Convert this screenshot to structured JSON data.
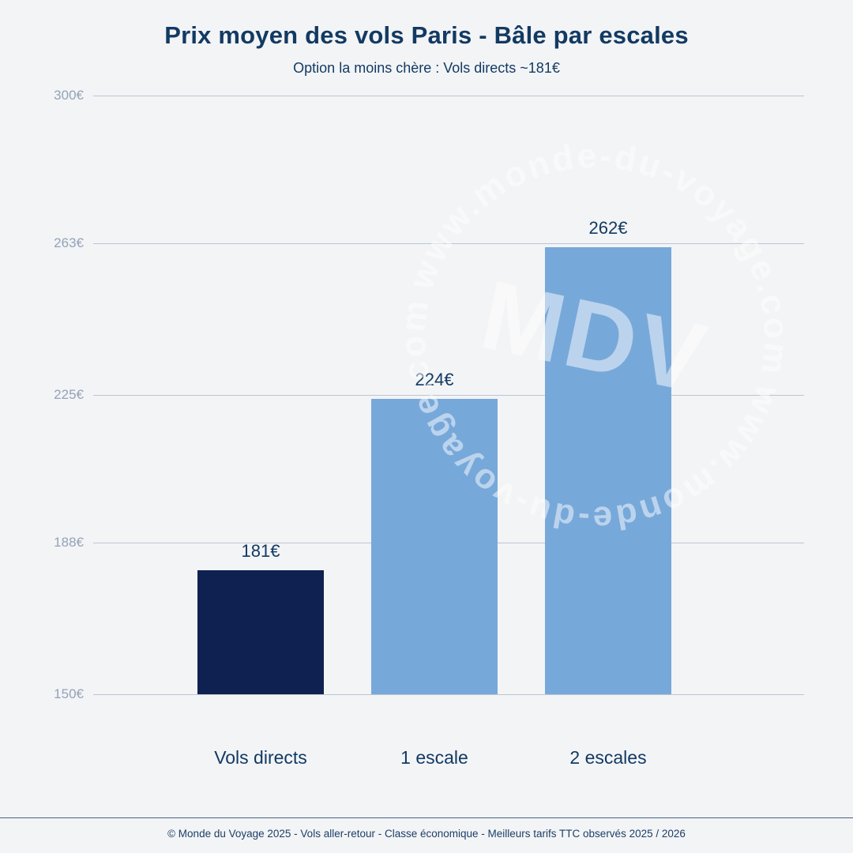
{
  "chart_data": {
    "type": "bar",
    "title": "Prix moyen des vols Paris - Bâle par escales",
    "subtitle": "Option la moins chère : Vols directs ~181€",
    "categories": [
      "Vols directs",
      "1 escale",
      "2 escales"
    ],
    "values": [
      181,
      224,
      262
    ],
    "value_labels": [
      "181€",
      "224€",
      "262€"
    ],
    "ylim": [
      150,
      300
    ],
    "yticks": [
      {
        "value": 300,
        "label": "300€"
      },
      {
        "value": 263,
        "label": "263€"
      },
      {
        "value": 225,
        "label": "225€"
      },
      {
        "value": 188,
        "label": "188€"
      },
      {
        "value": 150,
        "label": "150€"
      }
    ],
    "grid": true,
    "legend": false,
    "bar_colors": [
      "#0e2150",
      "#77a8da",
      "#77a8da"
    ]
  },
  "watermark": {
    "ring_text": "www.monde-du-voyage.com ·",
    "center_text": "MDV"
  },
  "footer": {
    "text": "© Monde du Voyage 2025 - Vols aller-retour - Classe économique - Meilleurs tarifs TTC observés 2025 / 2026"
  },
  "colors": {
    "background": "#f3f4f6",
    "title": "#123a63",
    "axis_label": "#93a3b8",
    "gridline": "#bcc5d2",
    "value_label": "#123a63",
    "category_label": "#123a63",
    "footer_text": "#1b3f66"
  }
}
